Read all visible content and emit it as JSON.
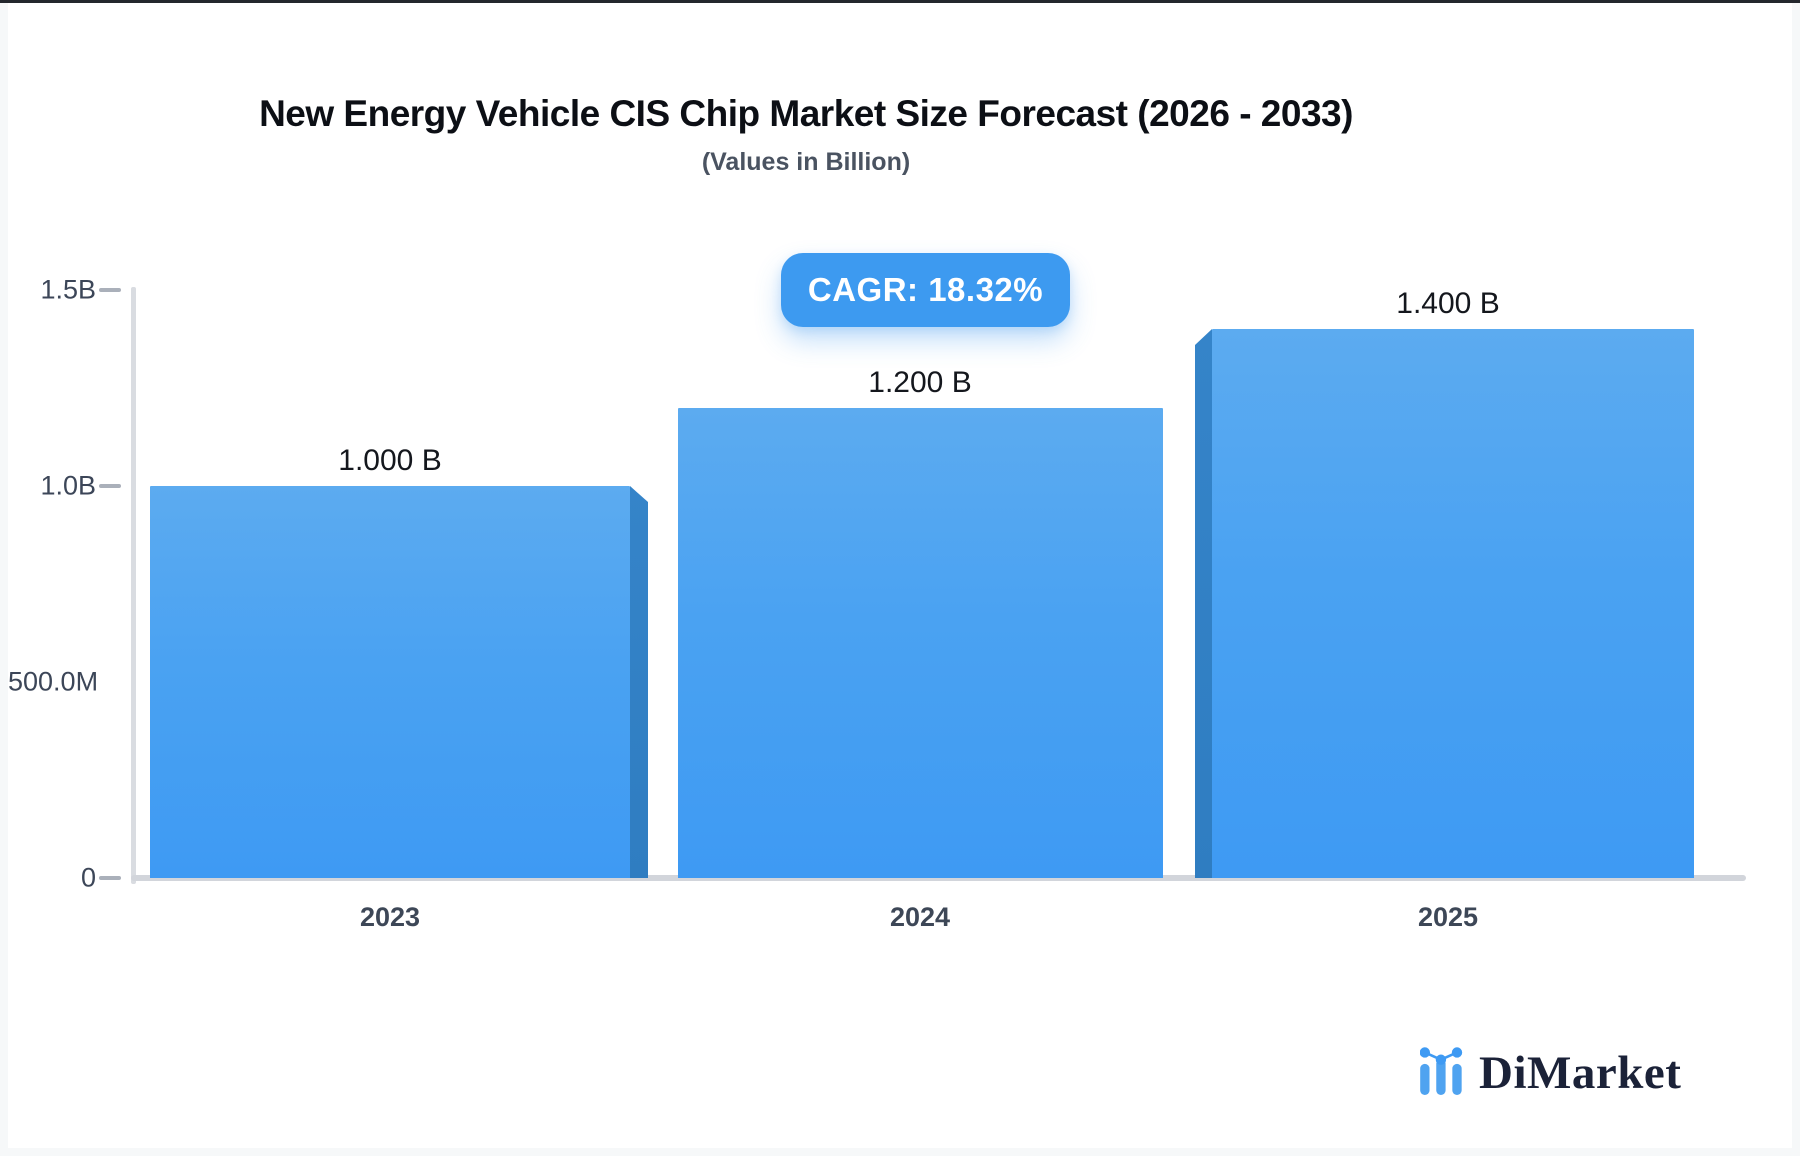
{
  "header": {
    "title": "New Energy Vehicle CIS Chip Market Size Forecast (2026 - 2033)",
    "subtitle": "(Values in Billion)",
    "cagr_label": "CAGR: 18.32%"
  },
  "chart_data": {
    "type": "bar",
    "title": "New Energy Vehicle CIS Chip Market Size Forecast (2026 - 2033)",
    "subtitle": "(Values in Billion)",
    "annotation": "CAGR: 18.32%",
    "categories": [
      "2023",
      "2024",
      "2025"
    ],
    "values": [
      1.0,
      1.2,
      1.4
    ],
    "value_labels": [
      "1.000 B",
      "1.200 B",
      "1.400 B"
    ],
    "unit": "Billion",
    "ylim": [
      0,
      1.5
    ],
    "yticks": [
      {
        "label": "1.5B",
        "value": 1.5,
        "tick": true
      },
      {
        "label": "1.0B",
        "value": 1.0,
        "tick": true
      },
      {
        "label": "500.0M",
        "value": 0.5,
        "tick": false
      },
      {
        "label": "0",
        "value": 0,
        "tick": true
      }
    ],
    "grid": false,
    "legend": null,
    "colors": {
      "bar_top": "#5cabf0",
      "bar_bottom": "#3e9af3",
      "bar_side": "#2f7dc1",
      "badge_background": "#3d9af0",
      "badge_text": "#ffffff",
      "axis_line": "#d2d5db",
      "text_dark": "#0c0f15"
    }
  },
  "footer": {
    "brand": "DiMarket",
    "brand_icon": "bar-line-chart-icon"
  }
}
